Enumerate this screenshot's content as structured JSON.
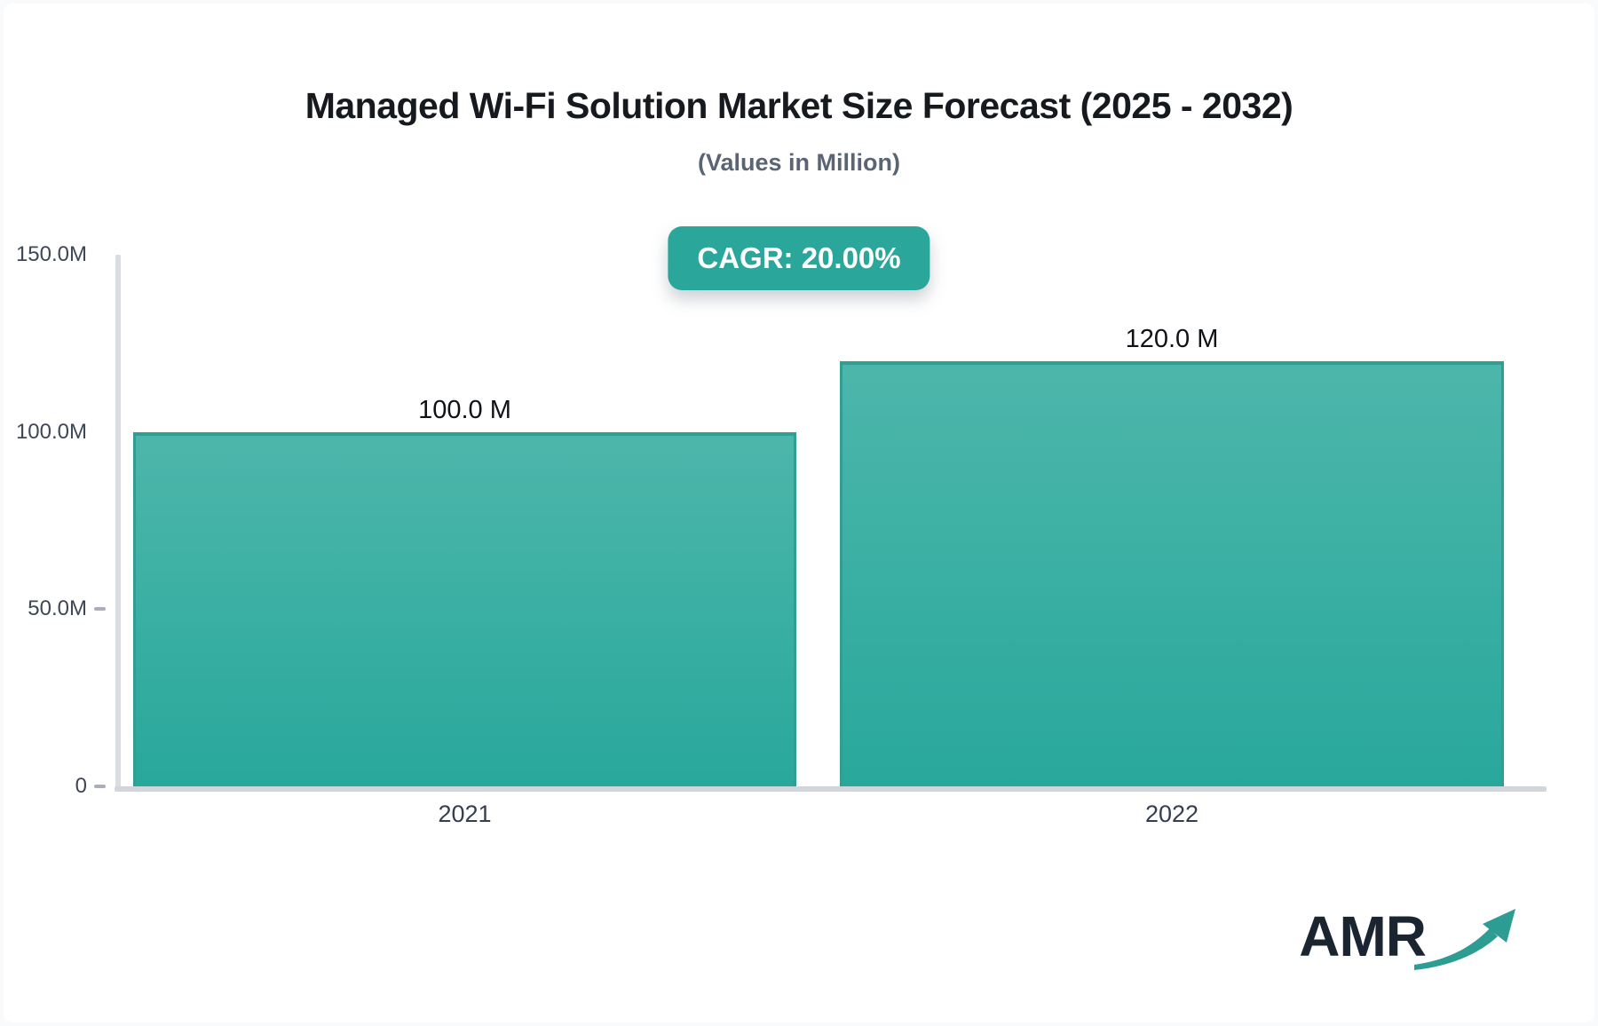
{
  "header": {
    "title": "Managed Wi-Fi Solution Market Size Forecast (2025 - 2032)",
    "subtitle": "(Values in Million)",
    "cagr_badge_label": "CAGR: 20.00%"
  },
  "chart_data": {
    "type": "bar",
    "title": "Managed Wi-Fi Solution Market Size Forecast (2025 - 2032)",
    "subtitle": "(Values in Million)",
    "unit": "Million",
    "cagr_percent": 20.0,
    "categories": [
      "2021",
      "2022"
    ],
    "values": [
      100.0,
      120.0
    ],
    "value_labels": [
      "100.0 M",
      "120.0 M"
    ],
    "ylim": [
      0,
      150
    ],
    "yticks": [
      {
        "value": 150,
        "label": "150.0M",
        "mark": false
      },
      {
        "value": 100,
        "label": "100.0M",
        "mark": false
      },
      {
        "value": 50,
        "label": "50.0M",
        "mark": true
      },
      {
        "value": 0,
        "label": "0",
        "mark": true
      }
    ],
    "grid": false,
    "legend": false,
    "bar_gradient": [
      "#4db6ab",
      "#28a89b"
    ],
    "bar_border": "#2f9e93"
  },
  "logo": {
    "text": "AMR",
    "arrow_icon": "trend-up-arrow",
    "text_color": "#1b2531",
    "arrow_color": "#2d9c93"
  },
  "colors": {
    "page_background": "#f8fafc",
    "card_background": "#ffffff",
    "badge_background": "#2aa69b",
    "badge_text": "#ffffff",
    "axis_line": "#d9dce2",
    "y_label": "#3e4755",
    "x_label": "#343e4e"
  }
}
